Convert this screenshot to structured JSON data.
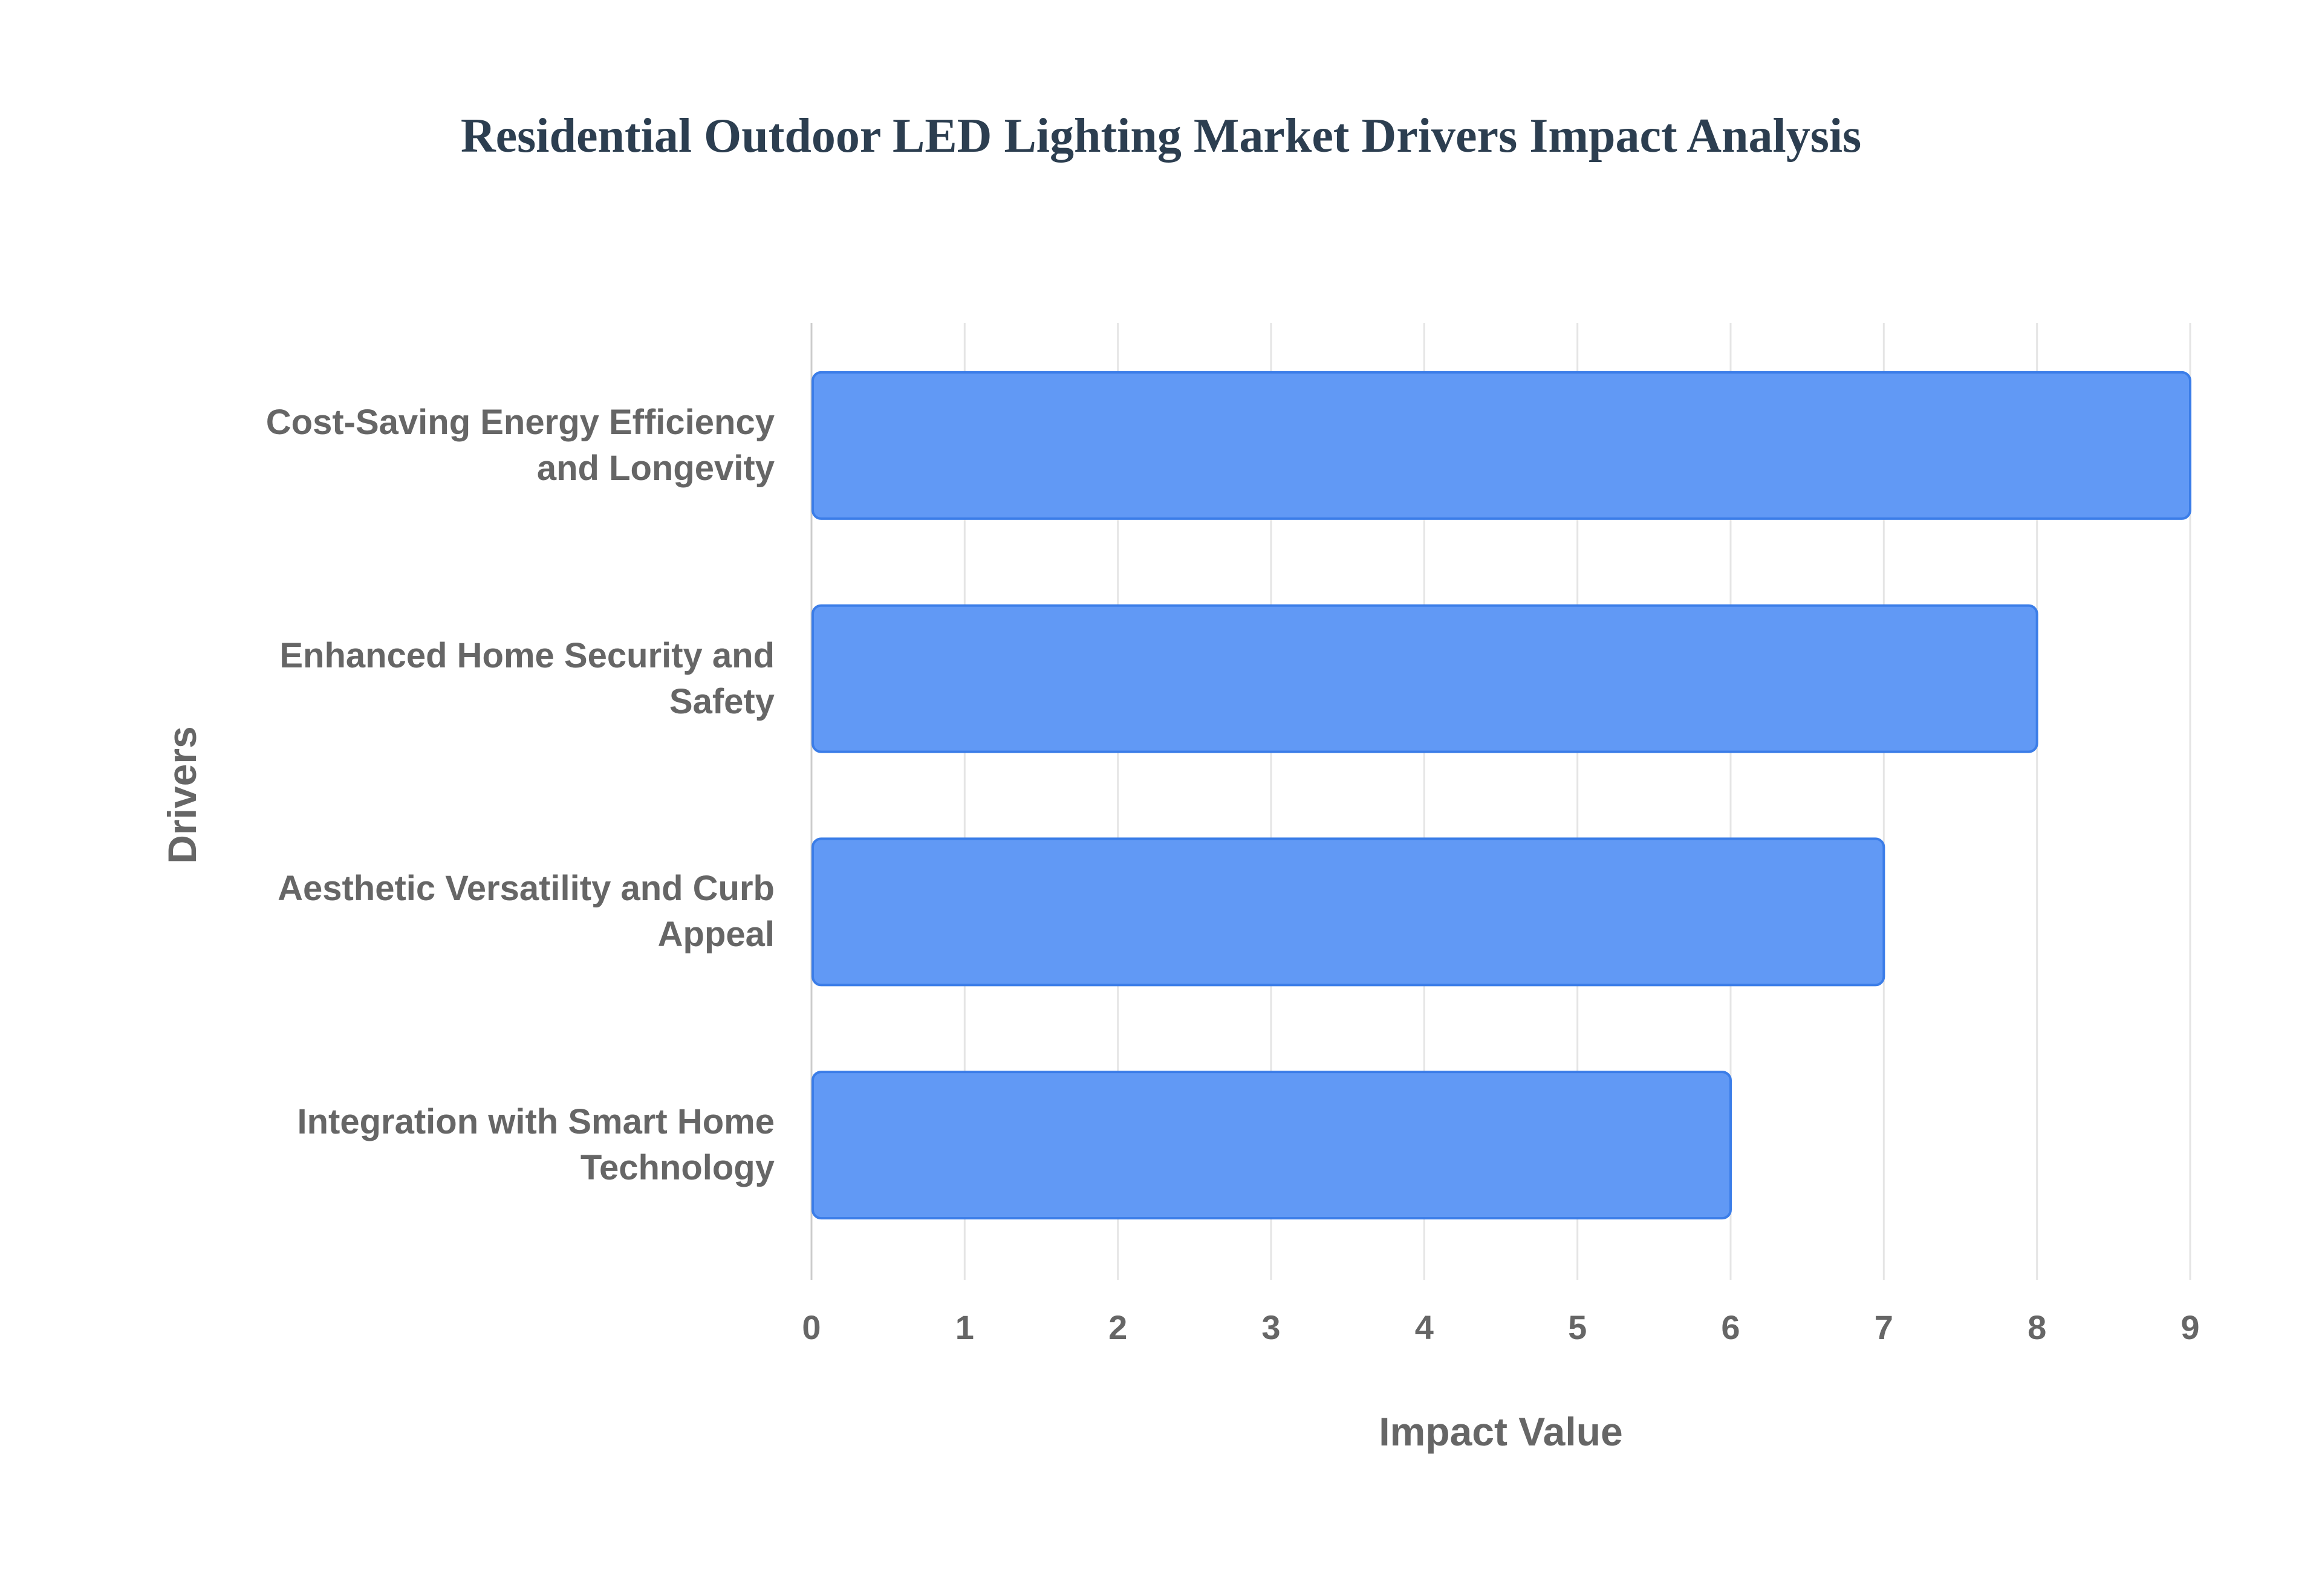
{
  "chart_data": {
    "type": "bar",
    "orientation": "horizontal",
    "title": "Residential Outdoor LED Lighting Market Drivers Impact Analysis",
    "xlabel": "Impact Value",
    "ylabel": "Drivers",
    "categories": [
      [
        "Cost-Saving Energy Efficiency",
        "and Longevity"
      ],
      [
        "Enhanced Home Security and",
        "Safety"
      ],
      [
        "Aesthetic Versatility and Curb",
        "Appeal"
      ],
      [
        "Integration with Smart Home",
        "Technology"
      ]
    ],
    "values": [
      9,
      8,
      7,
      6
    ],
    "xlim": [
      0,
      9
    ],
    "xticks": [
      "0",
      "1",
      "2",
      "3",
      "4",
      "5",
      "6",
      "7",
      "8",
      "9"
    ],
    "grid": true,
    "legend": "none",
    "colors": {
      "bar_fill": "#6199f5",
      "bar_border": "#3b7de8",
      "grid": "#e5e5e5",
      "text": "#666666",
      "title": "#2c3e50"
    }
  }
}
